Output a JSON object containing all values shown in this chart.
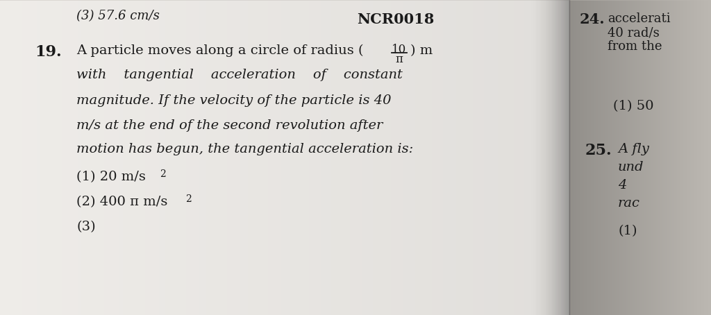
{
  "text_color": "#1a1a1a",
  "fig_width": 10.24,
  "fig_height": 4.54,
  "top_left_text": "(3) 57.6 cm/s",
  "top_center_text": "NCR0018",
  "top_right_num": "24.",
  "top_right_line1": "accelerati",
  "top_right_line2": "40 rad/s",
  "top_right_line3": "from the",
  "question_number": "19.",
  "fraction_num": "10",
  "fraction_den": "π",
  "question_line1_pre": "A particle moves along a circle of radius (",
  "question_line1_post": ") m",
  "question_line2": "with    tangential    acceleration    of    constant",
  "question_line3": "magnitude. If the velocity of the particle is 40",
  "question_line4": "m/s at the end of the second revolution after",
  "question_line5": "motion has begun, the tangential acceleration is:",
  "option1_pre": "(1) 20 m/s",
  "option1_sup": "2",
  "option2_pre": "(2) 400 π m/s",
  "option2_sup": "2",
  "option3_pre": "(3)",
  "right_mid": "(1) 50",
  "right_bottom_num": "25.",
  "right_bottom_line1": "A fly",
  "right_bottom_line2": "und",
  "right_bottom_line3": "4",
  "right_bottom_line4": "rac",
  "right_bottom_last": "(1)"
}
